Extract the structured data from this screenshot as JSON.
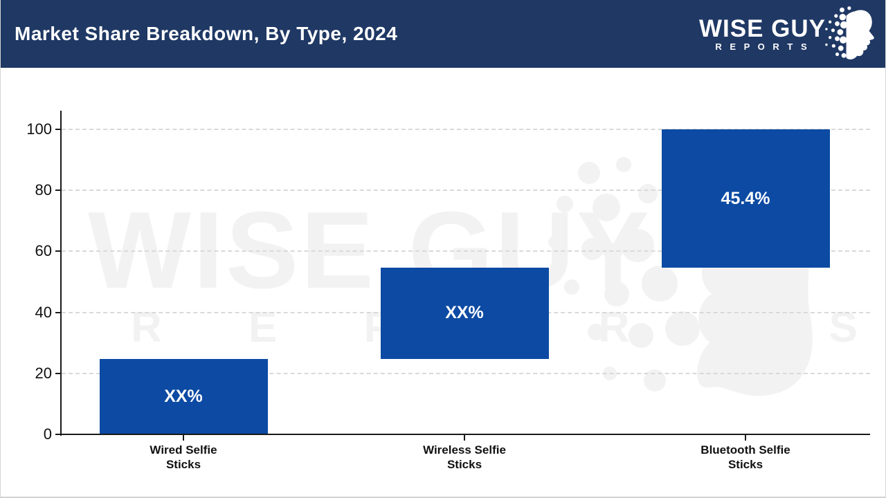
{
  "header": {
    "title": "Market Share Breakdown, By Type, 2024",
    "logo": {
      "line1": "WISE GUY",
      "line2": "R E P O R T S"
    }
  },
  "watermark": {
    "line1": "WISE GUY",
    "line2": "R E P O R T S"
  },
  "colors": {
    "header_bg": "#1f3864",
    "bar": "#0c4aa3",
    "grid": "#d9d9d9",
    "axis": "#1a1a1a",
    "bar_label": "#ffffff",
    "watermark": "#f2f2f2"
  },
  "chart_data": {
    "type": "bar",
    "subtype": "floating-cumulative-percentage",
    "title": "Market Share Breakdown, By Type, 2024",
    "categories": [
      "Wired Selfie\nSticks",
      "Wireless Selfie\nSticks",
      "Bluetooth Selfie\nSticks"
    ],
    "bars": [
      {
        "category": "Wired Selfie Sticks",
        "start": 0,
        "end": 24.8,
        "value": 24.8,
        "label": "XX%"
      },
      {
        "category": "Wireless Selfie Sticks",
        "start": 24.8,
        "end": 54.6,
        "value": 29.8,
        "label": "XX%"
      },
      {
        "category": "Bluetooth Selfie Sticks",
        "start": 54.6,
        "end": 100,
        "value": 45.4,
        "label": "45.4%"
      }
    ],
    "yticks": [
      0,
      20,
      40,
      60,
      80,
      100
    ],
    "ylim": [
      0,
      106
    ],
    "xlabel": "",
    "ylabel": "",
    "grid": "horizontal-dashed",
    "legend": "none"
  }
}
